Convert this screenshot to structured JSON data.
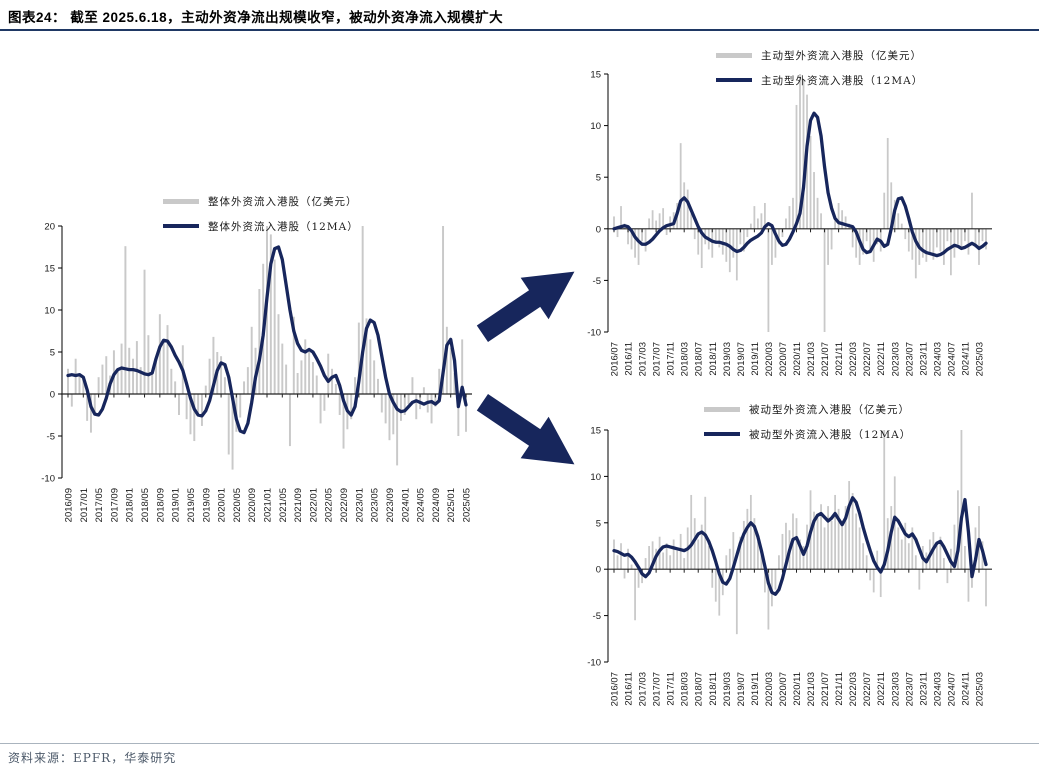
{
  "header": {
    "title": "图表24：  截至 2025.6.18，主动外资净流出规模收窄，被动外资净流入规模扩大"
  },
  "footer": {
    "source": "资料来源：EPFR，华泰研究"
  },
  "colors": {
    "navy": "#17265C",
    "bar_gray": "#C9C9C9",
    "title_rule": "#1F3864",
    "axis": "#1a1a1a"
  },
  "icons": {
    "arrow_up_right": "block-arrow-up-right",
    "arrow_down_right": "block-arrow-down-right"
  },
  "chart_data": [
    {
      "type": "bar",
      "name": "overall-foreign-flows-hk",
      "legend": [
        "整体外资流入港股（亿美元）",
        "整体外资流入港股（12MA）"
      ],
      "ylim": [
        -10,
        20
      ],
      "yticks": [
        20,
        15,
        10,
        5,
        0,
        -5,
        -10
      ],
      "grid": false,
      "legend_position": "top-inside",
      "months_start": "2016/09",
      "x_tick_labels": [
        "2016/09",
        "2017/01",
        "2017/05",
        "2017/09",
        "2018/01",
        "2018/05",
        "2018/09",
        "2019/01",
        "2019/05",
        "2019/09",
        "2020/01",
        "2020/05",
        "2020/09",
        "2021/01",
        "2021/05",
        "2021/09",
        "2022/01",
        "2022/05",
        "2022/09",
        "2023/01",
        "2023/05",
        "2023/09",
        "2024/01",
        "2024/05",
        "2024/09",
        "2025/01",
        "2025/05"
      ],
      "bars": [
        3.0,
        -1.5,
        4.2,
        2.5,
        1.8,
        -3.2,
        -4.6,
        -2.5,
        2.0,
        3.5,
        4.5,
        2.2,
        5.2,
        3.0,
        6.0,
        17.6,
        5.5,
        4.2,
        6.3,
        3.2,
        14.8,
        7.0,
        2.8,
        4.5,
        9.5,
        6.5,
        8.2,
        3.0,
        1.5,
        -2.5,
        5.8,
        -3.0,
        -4.8,
        -5.6,
        -2.2,
        -3.8,
        1.0,
        4.2,
        6.8,
        5.0,
        4.5,
        2.0,
        -7.2,
        -9.0,
        -4.5,
        -2.8,
        1.5,
        3.2,
        8.0,
        5.5,
        12.5,
        15.5,
        20.0,
        19.0,
        16.0,
        9.5,
        6.0,
        3.5,
        -6.2,
        9.2,
        2.5,
        4.0,
        6.5,
        5.0,
        3.8,
        2.2,
        -3.5,
        -2.0,
        4.8,
        3.0,
        1.2,
        -2.5,
        -6.5,
        -4.2,
        -3.0,
        2.0,
        8.5,
        20.0,
        9.0,
        6.5,
        4.0,
        1.8,
        -2.2,
        -3.5,
        -5.5,
        -4.8,
        -8.5,
        -3.2,
        -2.5,
        -1.2,
        2.0,
        -3.0,
        -1.8,
        0.8,
        -2.2,
        -3.5,
        -1.5,
        3.0,
        20.0,
        8.0,
        5.5,
        2.5,
        -5.0,
        6.5,
        -4.5
      ],
      "ma12": [
        2.2,
        2.3,
        2.2,
        2.3,
        2.0,
        0.5,
        -1.5,
        -2.4,
        -2.5,
        -1.8,
        -0.5,
        1.2,
        2.3,
        2.9,
        3.1,
        3.0,
        2.9,
        2.9,
        2.8,
        2.6,
        2.4,
        2.3,
        2.5,
        4.2,
        5.6,
        6.4,
        6.3,
        5.6,
        4.6,
        3.8,
        2.8,
        1.2,
        -0.5,
        -1.8,
        -2.5,
        -2.6,
        -2.0,
        -0.8,
        1.0,
        2.8,
        3.7,
        3.5,
        2.0,
        -0.5,
        -3.0,
        -4.4,
        -4.6,
        -3.5,
        -1.0,
        2.0,
        4.0,
        7.0,
        11.5,
        15.5,
        17.3,
        17.5,
        16.0,
        13.0,
        10.0,
        7.5,
        6.0,
        5.2,
        5.0,
        5.3,
        5.0,
        4.2,
        3.3,
        2.2,
        1.5,
        2.0,
        2.2,
        1.0,
        -0.8,
        -2.0,
        -2.5,
        -1.5,
        1.5,
        5.0,
        7.8,
        8.8,
        8.5,
        7.0,
        4.5,
        2.0,
        0.0,
        -1.0,
        -1.8,
        -2.1,
        -2.0,
        -1.5,
        -1.0,
        -0.8,
        -1.0,
        -1.2,
        -1.0,
        -0.9,
        -1.2,
        -0.8,
        2.5,
        5.8,
        6.5,
        4.0,
        -1.5,
        0.8,
        -1.3
      ]
    },
    {
      "type": "bar",
      "name": "active-foreign-flows-hk",
      "legend": [
        "主动型外资流入港股（亿美元）",
        "主动型外资流入港股（12MA）"
      ],
      "ylim": [
        -10,
        15
      ],
      "yticks": [
        15,
        10,
        5,
        0,
        -5,
        -10
      ],
      "grid": false,
      "legend_position": "top-inside",
      "months_start": "2016/07",
      "x_tick_labels": [
        "2016/07",
        "2016/11",
        "2017/03",
        "2017/07",
        "2017/11",
        "2018/03",
        "2018/07",
        "2018/11",
        "2019/03",
        "2019/07",
        "2019/11",
        "2020/03",
        "2020/07",
        "2020/11",
        "2021/03",
        "2021/07",
        "2021/11",
        "2022/03",
        "2022/07",
        "2022/11",
        "2023/03",
        "2023/07",
        "2023/11",
        "2024/03",
        "2024/07",
        "2024/11",
        "2025/03"
      ],
      "bars": [
        1.2,
        -0.8,
        2.2,
        0.5,
        -1.5,
        -2.0,
        -2.8,
        -3.5,
        -1.2,
        -2.2,
        1.0,
        1.8,
        0.8,
        1.5,
        2.0,
        -0.6,
        1.2,
        1.6,
        2.5,
        8.3,
        4.5,
        3.8,
        1.5,
        -1.0,
        -2.5,
        -3.8,
        -1.5,
        -2.0,
        -2.8,
        -1.2,
        -1.8,
        -2.5,
        -3.2,
        -4.2,
        -2.8,
        -5.0,
        -1.5,
        -2.2,
        -0.8,
        0.5,
        2.2,
        1.0,
        1.5,
        2.5,
        -10.0,
        -3.5,
        -2.8,
        -1.5,
        -0.8,
        1.0,
        2.2,
        3.0,
        12.0,
        15.5,
        14.5,
        13.0,
        9.0,
        5.5,
        3.0,
        1.5,
        -10.0,
        -3.5,
        -2.0,
        0.8,
        2.5,
        1.8,
        1.2,
        0.5,
        -1.8,
        -2.8,
        -3.5,
        -2.5,
        -1.2,
        -2.0,
        -3.2,
        -1.5,
        -2.2,
        3.5,
        8.8,
        4.5,
        2.8,
        1.5,
        0.5,
        -1.0,
        -2.2,
        -3.0,
        -4.8,
        -3.5,
        -2.8,
        -3.2,
        -2.5,
        -3.0,
        -1.8,
        -2.2,
        -3.5,
        -1.2,
        -4.5,
        -2.8,
        -1.5,
        -2.0,
        -1.2,
        -2.5,
        3.5,
        -1.8,
        -3.5,
        -1.2,
        -2.0
      ],
      "ma12": [
        0.0,
        0.1,
        0.2,
        0.3,
        0.2,
        -0.2,
        -0.8,
        -1.2,
        -1.5,
        -1.5,
        -1.3,
        -1.0,
        -0.6,
        -0.2,
        0.1,
        0.3,
        0.4,
        0.5,
        1.5,
        2.7,
        3.0,
        2.6,
        1.8,
        1.0,
        0.2,
        -0.4,
        -0.8,
        -1.0,
        -1.2,
        -1.3,
        -1.3,
        -1.4,
        -1.5,
        -1.7,
        -2.0,
        -2.2,
        -2.1,
        -1.8,
        -1.4,
        -1.1,
        -0.9,
        -0.7,
        -0.4,
        0.2,
        0.5,
        0.3,
        -0.5,
        -1.2,
        -1.6,
        -1.5,
        -1.0,
        -0.3,
        0.5,
        1.5,
        4.0,
        8.0,
        10.5,
        11.2,
        10.8,
        9.0,
        6.0,
        3.5,
        2.0,
        1.0,
        0.6,
        0.5,
        0.4,
        0.3,
        0.2,
        -0.3,
        -1.2,
        -2.0,
        -2.3,
        -2.2,
        -1.6,
        -1.0,
        -1.2,
        -1.7,
        -1.5,
        0.0,
        1.8,
        2.9,
        3.0,
        2.2,
        1.0,
        -0.3,
        -1.2,
        -1.8,
        -2.1,
        -2.3,
        -2.4,
        -2.5,
        -2.6,
        -2.5,
        -2.3,
        -2.0,
        -1.8,
        -1.6,
        -1.7,
        -1.9,
        -1.8,
        -1.6,
        -1.4,
        -1.6,
        -1.9,
        -1.7,
        -1.4
      ]
    },
    {
      "type": "bar",
      "name": "passive-foreign-flows-hk",
      "legend": [
        "被动型外资流入港股（亿美元）",
        "被动型外资流入港股（12MA）"
      ],
      "ylim": [
        -10,
        15
      ],
      "yticks": [
        15,
        10,
        5,
        0,
        -5,
        -10
      ],
      "grid": false,
      "legend_position": "top-inside",
      "months_start": "2016/07",
      "x_tick_labels": [
        "2016/07",
        "2016/11",
        "2017/03",
        "2017/07",
        "2017/11",
        "2018/03",
        "2018/07",
        "2018/11",
        "2019/03",
        "2019/07",
        "2019/11",
        "2020/03",
        "2020/07",
        "2020/11",
        "2021/03",
        "2021/07",
        "2021/11",
        "2022/03",
        "2022/07",
        "2022/11",
        "2023/03",
        "2023/07",
        "2023/11",
        "2024/03",
        "2024/07",
        "2024/11",
        "2025/03"
      ],
      "bars": [
        3.2,
        1.5,
        2.8,
        -1.0,
        2.2,
        0.5,
        -5.5,
        -2.0,
        -1.5,
        1.2,
        2.5,
        3.0,
        2.2,
        3.5,
        1.8,
        2.8,
        1.5,
        3.2,
        2.0,
        3.8,
        1.2,
        4.5,
        8.0,
        5.5,
        3.2,
        4.8,
        7.8,
        2.5,
        -2.0,
        -3.5,
        -5.0,
        -2.8,
        1.5,
        2.2,
        4.0,
        -7.0,
        3.5,
        5.2,
        6.5,
        8.0,
        5.5,
        3.0,
        1.8,
        -2.5,
        -6.5,
        -4.0,
        -2.2,
        1.5,
        3.8,
        5.0,
        4.2,
        6.0,
        5.5,
        3.2,
        2.5,
        4.8,
        8.5,
        6.2,
        5.5,
        7.0,
        4.5,
        6.8,
        5.2,
        8.0,
        6.5,
        5.0,
        6.8,
        9.5,
        8.2,
        6.0,
        4.5,
        2.8,
        1.5,
        -1.2,
        -2.5,
        2.0,
        -3.0,
        15.0,
        5.5,
        6.8,
        10.0,
        4.5,
        3.2,
        5.0,
        2.8,
        4.5,
        1.5,
        -2.2,
        2.5,
        1.8,
        3.2,
        4.0,
        2.5,
        3.5,
        1.2,
        -1.5,
        2.2,
        4.8,
        8.5,
        15.0,
        2.5,
        -3.5,
        -2.0,
        4.5,
        6.8,
        3.0,
        -4.0
      ],
      "ma12": [
        2.0,
        1.9,
        1.7,
        1.5,
        1.6,
        1.3,
        0.8,
        0.2,
        -0.5,
        -0.8,
        -0.4,
        0.5,
        1.4,
        2.0,
        2.4,
        2.5,
        2.4,
        2.3,
        2.2,
        2.1,
        2.0,
        2.2,
        2.6,
        3.2,
        3.8,
        4.0,
        3.7,
        3.0,
        2.0,
        0.8,
        -0.5,
        -1.4,
        -1.6,
        -1.0,
        0.2,
        1.5,
        2.8,
        3.8,
        4.5,
        5.0,
        4.6,
        3.5,
        2.0,
        0.3,
        -1.5,
        -2.5,
        -2.7,
        -2.2,
        -1.0,
        0.5,
        2.0,
        3.2,
        3.4,
        2.5,
        1.6,
        2.5,
        4.0,
        5.2,
        5.8,
        6.0,
        5.6,
        5.2,
        5.5,
        6.0,
        5.4,
        4.8,
        5.5,
        6.8,
        7.7,
        7.2,
        6.0,
        4.5,
        3.2,
        2.0,
        0.9,
        0.2,
        -0.3,
        0.5,
        2.0,
        4.0,
        5.6,
        5.2,
        4.5,
        3.8,
        3.5,
        3.8,
        3.2,
        2.2,
        1.2,
        0.8,
        1.5,
        2.2,
        2.8,
        3.0,
        2.4,
        1.6,
        0.8,
        0.3,
        2.0,
        5.5,
        7.5,
        4.0,
        -0.8,
        1.0,
        3.2,
        2.0,
        0.5
      ]
    }
  ]
}
